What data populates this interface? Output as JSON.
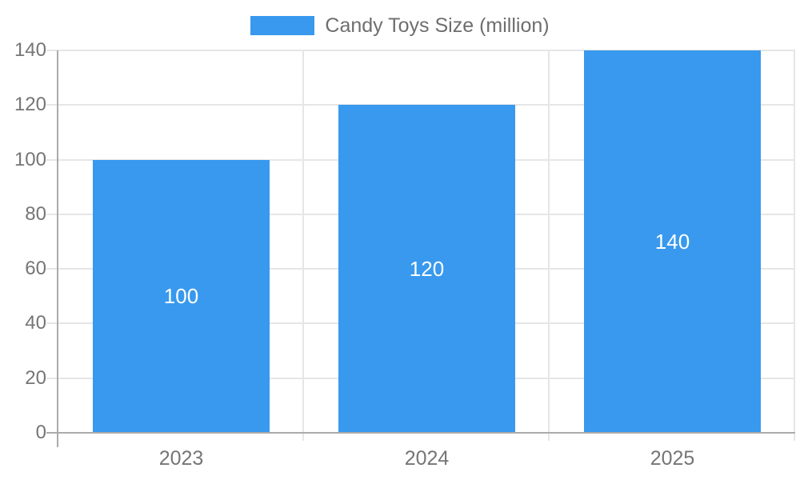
{
  "chart_data": {
    "type": "bar",
    "legend": "Candy Toys Size (million)",
    "legend_position": "top",
    "categories": [
      "2023",
      "2024",
      "2025"
    ],
    "series": [
      {
        "name": "Candy Toys Size (million)",
        "values": [
          100,
          120,
          140
        ]
      }
    ],
    "bar_value_labels": [
      "100",
      "120",
      "140"
    ],
    "xlabel": "",
    "ylabel": "",
    "ylim": [
      0,
      140
    ],
    "yticks": [
      0,
      20,
      40,
      60,
      80,
      100,
      120,
      140
    ],
    "grid": true,
    "colors": {
      "bar": "#3899ee",
      "grid": "#e6e6e6",
      "axis": "#ababab",
      "tick_text": "#757575",
      "legend_text": "#6e6e6e",
      "bar_label": "#ffffff"
    }
  }
}
